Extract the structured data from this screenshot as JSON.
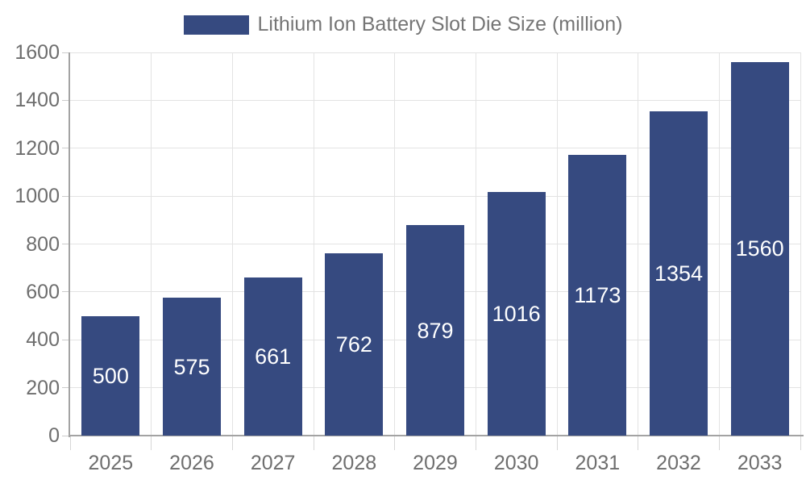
{
  "chart_data": {
    "type": "bar",
    "title": "Lithium Ion Battery Slot Die Size (million)",
    "categories": [
      "2025",
      "2026",
      "2027",
      "2028",
      "2029",
      "2030",
      "2031",
      "2032",
      "2033"
    ],
    "values": [
      500,
      575,
      661,
      762,
      879,
      1016,
      1173,
      1354,
      1560
    ],
    "series": [
      {
        "name": "Lithium Ion Battery Slot Die Size (million)",
        "values": [
          500,
          575,
          661,
          762,
          879,
          1016,
          1173,
          1354,
          1560
        ]
      }
    ],
    "xlabel": "",
    "ylabel": "",
    "ylim": [
      0,
      1600
    ],
    "yticks": [
      0,
      200,
      400,
      600,
      800,
      1000,
      1200,
      1400,
      1600
    ],
    "grid": true,
    "legend_position": "top-center",
    "bar_labels_inside": true,
    "colors": {
      "bar": "#364A80",
      "bar_label": "#ffffff",
      "grid": "#e3e3e3",
      "axis": "#a3a3a3",
      "tick_label": "#6e6e6e",
      "legend_text": "#757575"
    }
  }
}
